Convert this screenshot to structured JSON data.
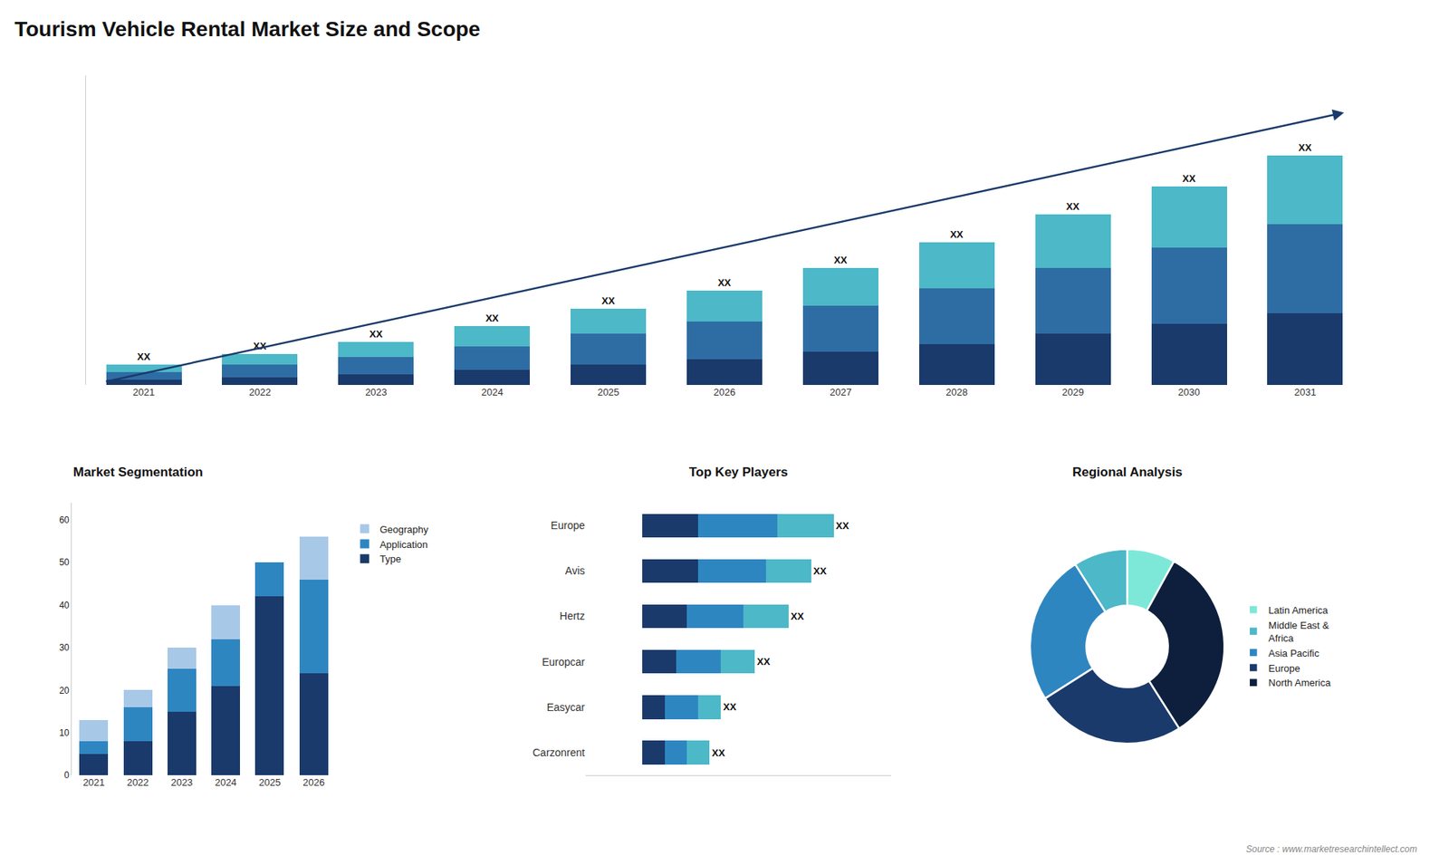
{
  "title": "Tourism Vehicle Rental Market Size and Scope",
  "annotations": [
    "Source : www.marketresearchintellect.com"
  ],
  "chart_data": [
    {
      "type": "bar",
      "stacked": true,
      "categories": [
        "2021",
        "2022",
        "2023",
        "2024",
        "2025",
        "2026",
        "2027",
        "2028",
        "2029",
        "2030",
        "2031"
      ],
      "series": [
        {
          "color": "#1a3a6b",
          "values": [
            2,
            3,
            4,
            6,
            8,
            10,
            13,
            16,
            20,
            24,
            28
          ]
        },
        {
          "color": "#2e6da4",
          "values": [
            3,
            5,
            7,
            9,
            12,
            15,
            18,
            22,
            26,
            30,
            35
          ]
        },
        {
          "color": "#4db8c8",
          "values": [
            3,
            4,
            6,
            8,
            10,
            12,
            15,
            18,
            21,
            24,
            27
          ]
        }
      ],
      "annotations": [
        {
          "category": "2021",
          "text": "XX"
        },
        {
          "category": "2022",
          "text": "XX"
        },
        {
          "category": "2023",
          "text": "XX"
        },
        {
          "category": "2024",
          "text": "XX"
        },
        {
          "category": "2025",
          "text": "XX"
        },
        {
          "category": "2026",
          "text": "XX"
        },
        {
          "category": "2027",
          "text": "XX"
        },
        {
          "category": "2028",
          "text": "XX"
        },
        {
          "category": "2029",
          "text": "XX"
        },
        {
          "category": "2030",
          "text": "XX"
        },
        {
          "category": "2031",
          "text": "XX"
        }
      ],
      "ylim": [
        0,
        121.5
      ],
      "tick_labels": "x",
      "grid": false
    },
    {
      "type": "bar",
      "stacked": true,
      "title": "Market Segmentation",
      "categories": [
        "2021",
        "2022",
        "2023",
        "2024",
        "2025",
        "2026"
      ],
      "series": [
        {
          "name": "Type",
          "color": "#1a3a6b",
          "values": [
            5,
            8,
            15,
            21,
            42,
            24
          ]
        },
        {
          "name": "Application",
          "color": "#2e86c1",
          "values": [
            3,
            8,
            10,
            11,
            8,
            22
          ]
        },
        {
          "name": "Geography",
          "color": "#a8c8e8",
          "values": [
            5,
            4,
            5,
            8,
            0,
            10
          ]
        }
      ],
      "ylim": [
        0,
        64
      ],
      "yticks": [
        0,
        10,
        20,
        30,
        40,
        50,
        60
      ],
      "legend": "right",
      "grid": false
    },
    {
      "type": "bar",
      "stacked": true,
      "orientation": "horizontal",
      "title": "Top Key Players",
      "categories": [
        "Europe",
        "Avis",
        "Hertz",
        "Europcar",
        "Easycar",
        "Carzonrent"
      ],
      "series": [
        {
          "color": "#1a3a6b",
          "values": [
            5,
            5,
            4,
            3,
            2,
            2
          ]
        },
        {
          "color": "#2e86c1",
          "values": [
            7,
            6,
            5,
            4,
            3,
            2
          ]
        },
        {
          "color": "#4db8c8",
          "values": [
            5,
            4,
            4,
            3,
            2,
            2
          ]
        }
      ],
      "annotations": [
        {
          "category": "Europe",
          "text": "XX"
        },
        {
          "category": "Avis",
          "text": "XX"
        },
        {
          "category": "Hertz",
          "text": "XX"
        },
        {
          "category": "Europcar",
          "text": "XX"
        },
        {
          "category": "Easycar",
          "text": "XX"
        },
        {
          "category": "Carzonrent",
          "text": "XX"
        }
      ],
      "xlim": [
        -5,
        22.1
      ],
      "tick_labels": "y",
      "grid": false
    },
    {
      "type": "pie",
      "title": "Regional Analysis",
      "categories": [
        "Latin America",
        "Middle East &\nAfrica",
        "Asia Pacific",
        "Europe",
        "North America"
      ],
      "values": [
        8,
        9,
        25,
        25,
        33
      ],
      "colors": [
        "#7ee8d8",
        "#4db8c8",
        "#2e86c1",
        "#1a3a6b",
        "#0d1f3c"
      ],
      "legend": "right",
      "data_labels": false
    }
  ]
}
